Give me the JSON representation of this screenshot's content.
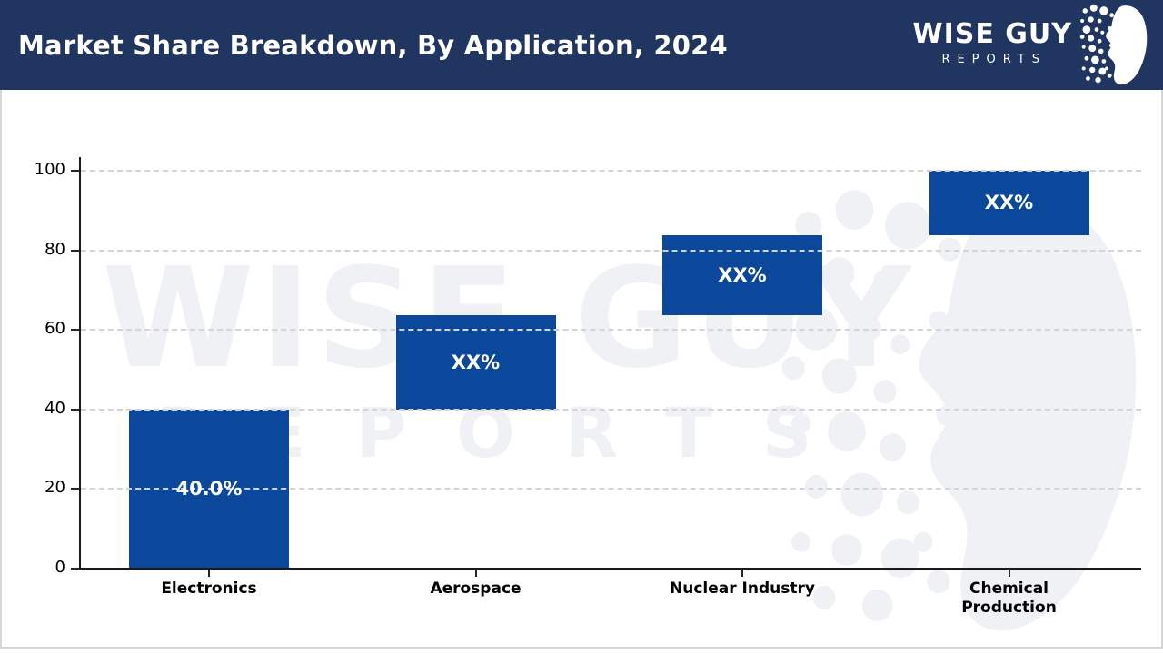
{
  "header": {
    "title": "Market Share Breakdown, By Application, 2024",
    "logo": {
      "line1": "WISE GUY",
      "line2": "REPORTS"
    }
  },
  "watermark": {
    "line1": "WISE GUY",
    "line2": "REPORTS"
  },
  "chart_data": {
    "type": "bar",
    "subtype": "waterfall-floating-bars",
    "title": "Market Share Breakdown, By Application, 2024",
    "xlabel": "",
    "ylabel": "",
    "categories": [
      "Electronics",
      "Aerospace",
      "Nuclear Industry",
      "Chemical\nProduction"
    ],
    "bars": [
      {
        "category": "Electronics",
        "start": 0,
        "end": 40,
        "label": "40.0%"
      },
      {
        "category": "Aerospace",
        "start": 40,
        "end": 63.6,
        "label": "XX%"
      },
      {
        "category": "Nuclear Industry",
        "start": 63.6,
        "end": 83.8,
        "label": "XX%"
      },
      {
        "category": "Chemical Production",
        "start": 83.8,
        "end": 100,
        "label": "XX%"
      }
    ],
    "yticks": [
      0,
      20,
      40,
      60,
      80,
      100
    ],
    "ylim": [
      0,
      103.5
    ],
    "grid": "horizontal-dashed",
    "legend": "none",
    "bar_color": "#0b489c"
  },
  "colors": {
    "header_bg": "#213561",
    "bar": "#0b489c",
    "gridline": "#d4d4d4",
    "watermark": "#f0f1f4",
    "title_text": "#ffffff",
    "axis_text": "#000000"
  }
}
